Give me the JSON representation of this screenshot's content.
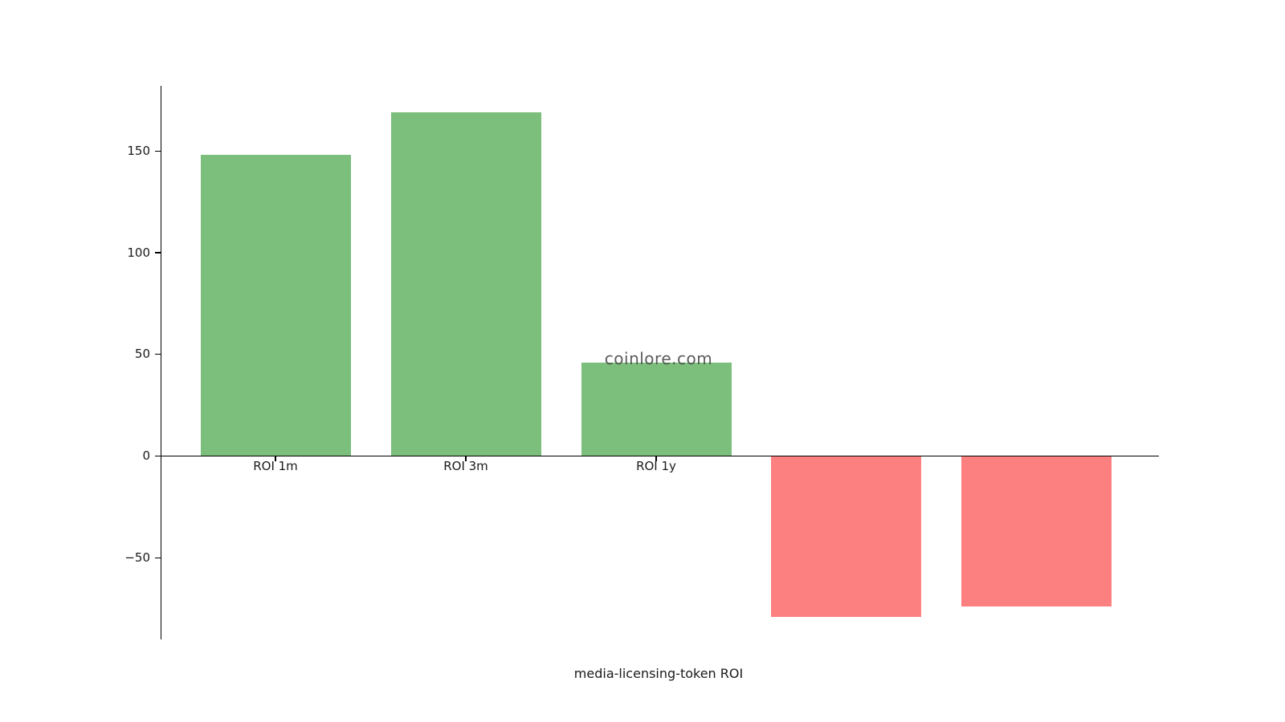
{
  "watermark": {
    "text": "coinlore.com",
    "color": "#404040"
  },
  "chart_data": {
    "type": "bar",
    "title": "media-licensing-token ROI",
    "categories": [
      "ROI 1m",
      "ROI 3m",
      "ROI 1y",
      "",
      ""
    ],
    "values": [
      148,
      169,
      46,
      -79,
      -74
    ],
    "bar_color_positive": "#7cbe7c",
    "bar_color_negative": "#fd8080",
    "yticks": [
      150,
      100,
      50,
      0,
      -50
    ],
    "ytick_labels": [
      "150",
      "100",
      "50",
      "0",
      "−50"
    ],
    "ylim": [
      -90,
      182
    ],
    "xlabel": "",
    "ylabel": "",
    "grid": false,
    "legend": "none",
    "axis_color": "#000000",
    "text_color": "#1a1a1a",
    "background_color": "#ffffff"
  }
}
